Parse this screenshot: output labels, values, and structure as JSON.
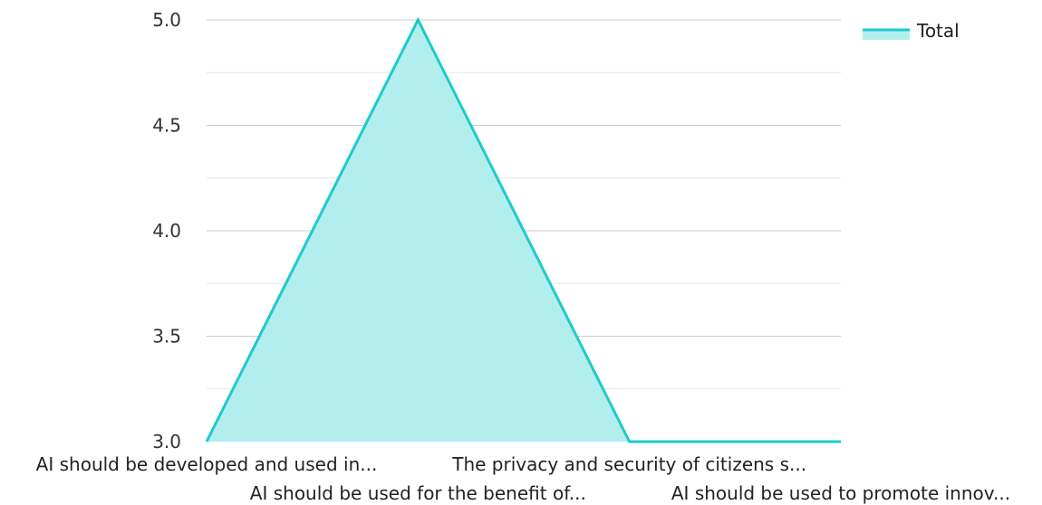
{
  "chart_data": {
    "type": "area",
    "categories": [
      "AI should be developed and used in...",
      "AI should be used for the benefit of...",
      "The privacy and security of citizens s...",
      "AI should be used to promote innov..."
    ],
    "series": [
      {
        "name": "Total",
        "values": [
          3.0,
          5.0,
          3.0,
          3.0
        ]
      }
    ],
    "yticks": [
      "3.0",
      "3.5",
      "4.0",
      "4.5",
      "5.0"
    ],
    "ylim": [
      3.0,
      5.0
    ],
    "grid": true,
    "legend": "top-right",
    "colors": {
      "line": "#1ccbcc",
      "fill": "#b2eeee",
      "grid": "#cccccc",
      "minor_grid": "#e6e6e6"
    }
  }
}
